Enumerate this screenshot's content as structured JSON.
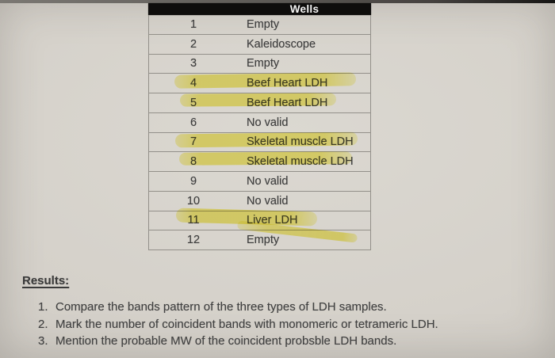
{
  "table": {
    "header": "Wells",
    "rows": [
      {
        "well": "1",
        "content": "Empty",
        "highlighted": false
      },
      {
        "well": "2",
        "content": "Kaleidoscope",
        "highlighted": false
      },
      {
        "well": "3",
        "content": "Empty",
        "highlighted": false
      },
      {
        "well": "4",
        "content": "Beef Heart LDH",
        "highlighted": true
      },
      {
        "well": "5",
        "content": "Beef Heart LDH",
        "highlighted": true
      },
      {
        "well": "6",
        "content": "No valid",
        "highlighted": false
      },
      {
        "well": "7",
        "content": "Skeletal muscle LDH",
        "highlighted": true
      },
      {
        "well": "8",
        "content": "Skeletal muscle LDH",
        "highlighted": true
      },
      {
        "well": "9",
        "content": "No valid",
        "highlighted": false
      },
      {
        "well": "10",
        "content": "No valid",
        "highlighted": false
      },
      {
        "well": "11",
        "content": "Liver LDH",
        "highlighted": true
      },
      {
        "well": "12",
        "content": "Empty",
        "highlighted": false
      }
    ]
  },
  "results": {
    "heading": "Results:",
    "items": [
      {
        "label": "1.",
        "text": "Compare the bands pattern of the three types of LDH samples."
      },
      {
        "label": "2.",
        "text": "Mark the number of coincident bands with monomeric or tetrameric LDH."
      },
      {
        "label": "3.",
        "text": "Mention the probable MW of the coincident probsble LDH bands."
      }
    ]
  },
  "colors": {
    "paper": "#d5d1ca",
    "header_bg": "#0e0d0c",
    "text": "#3d3d3d",
    "table_line": "#93908a",
    "highlighter": "#f1e52d"
  }
}
